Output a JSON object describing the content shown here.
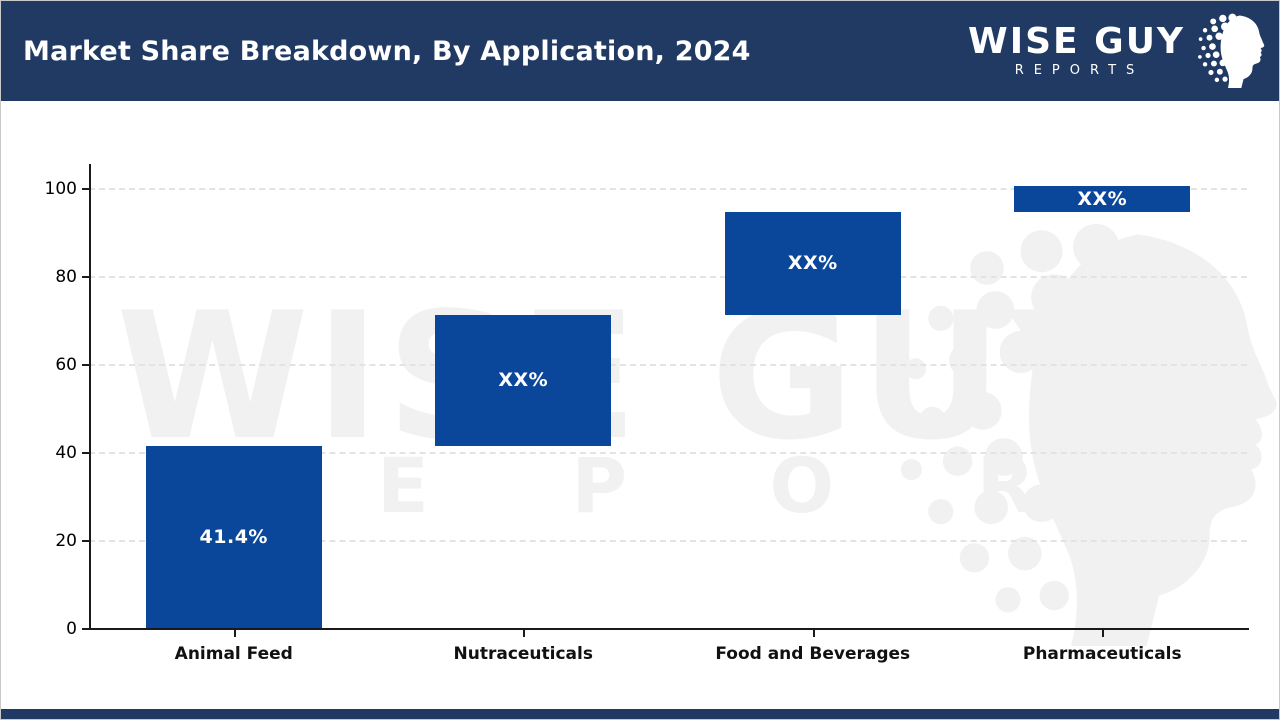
{
  "header": {
    "title": "Market Share Breakdown, By Application, 2024",
    "logo": {
      "brand_line1": "WISE GUY",
      "brand_line2": "REPORTS"
    }
  },
  "watermark": {
    "line1": "WISE GUY",
    "line2": "REPORTS"
  },
  "colors": {
    "header_bg": "#203a64",
    "bar_color": "#0a479b",
    "bar_label_color": "#ffffff",
    "grid_color": "#e3e3e3",
    "axis_color": "#1a1a1a",
    "watermark_color": "#f1f1f2"
  },
  "chart_data": {
    "type": "bar",
    "subtype": "waterfall-floating-bars",
    "title": "Market Share Breakdown, By Application, 2024",
    "categories": [
      "Animal Feed",
      "Nutraceuticals",
      "Food and Beverages",
      "Pharmaceuticals"
    ],
    "segments": [
      {
        "category": "Animal Feed",
        "start": 0,
        "end": 41.4,
        "label": "41.4%"
      },
      {
        "category": "Nutraceuticals",
        "start": 41.4,
        "end": 71.2,
        "label": "XX%"
      },
      {
        "category": "Food and Beverages",
        "start": 71.2,
        "end": 94.6,
        "label": "XX%"
      },
      {
        "category": "Pharmaceuticals",
        "start": 94.6,
        "end": 100.5,
        "label": "XX%"
      }
    ],
    "xlabel": "",
    "ylabel": "",
    "y_ticks": [
      0,
      20,
      40,
      60,
      80,
      100
    ],
    "ylim": [
      0,
      105.5
    ],
    "grid": "horizontal-dashed",
    "legend": "none",
    "value_labels_inside_bars": true
  }
}
